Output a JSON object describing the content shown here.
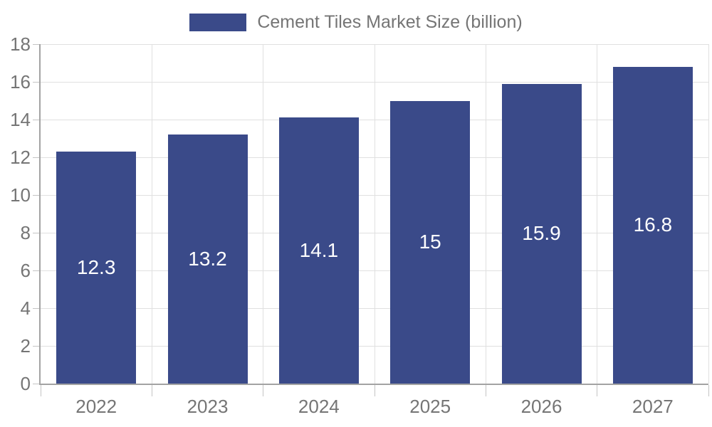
{
  "legend": {
    "label": "Cement Tiles Market Size (billion)",
    "swatch_color": "#3a4a89"
  },
  "chart_data": {
    "type": "bar",
    "title": "Cement Tiles Market Size (billion)",
    "categories": [
      "2022",
      "2023",
      "2024",
      "2025",
      "2026",
      "2027"
    ],
    "values": [
      12.3,
      13.2,
      14.1,
      15,
      15.9,
      16.8
    ],
    "value_labels": [
      "12.3",
      "13.2",
      "14.1",
      "15",
      "15.9",
      "16.8"
    ],
    "xlabel": "",
    "ylabel": "",
    "ylim": [
      0,
      18
    ],
    "ytick_step": 2,
    "yticks": [
      0,
      2,
      4,
      6,
      8,
      10,
      12,
      14,
      16,
      18
    ],
    "grid": true,
    "legend_position": "top-center",
    "bar_color": "#3a4a89",
    "value_label_color": "#ffffff",
    "axis_text_color": "#757575",
    "gridline_color": "#e0e0e0",
    "axis_line_color": "#a3a3a3"
  }
}
